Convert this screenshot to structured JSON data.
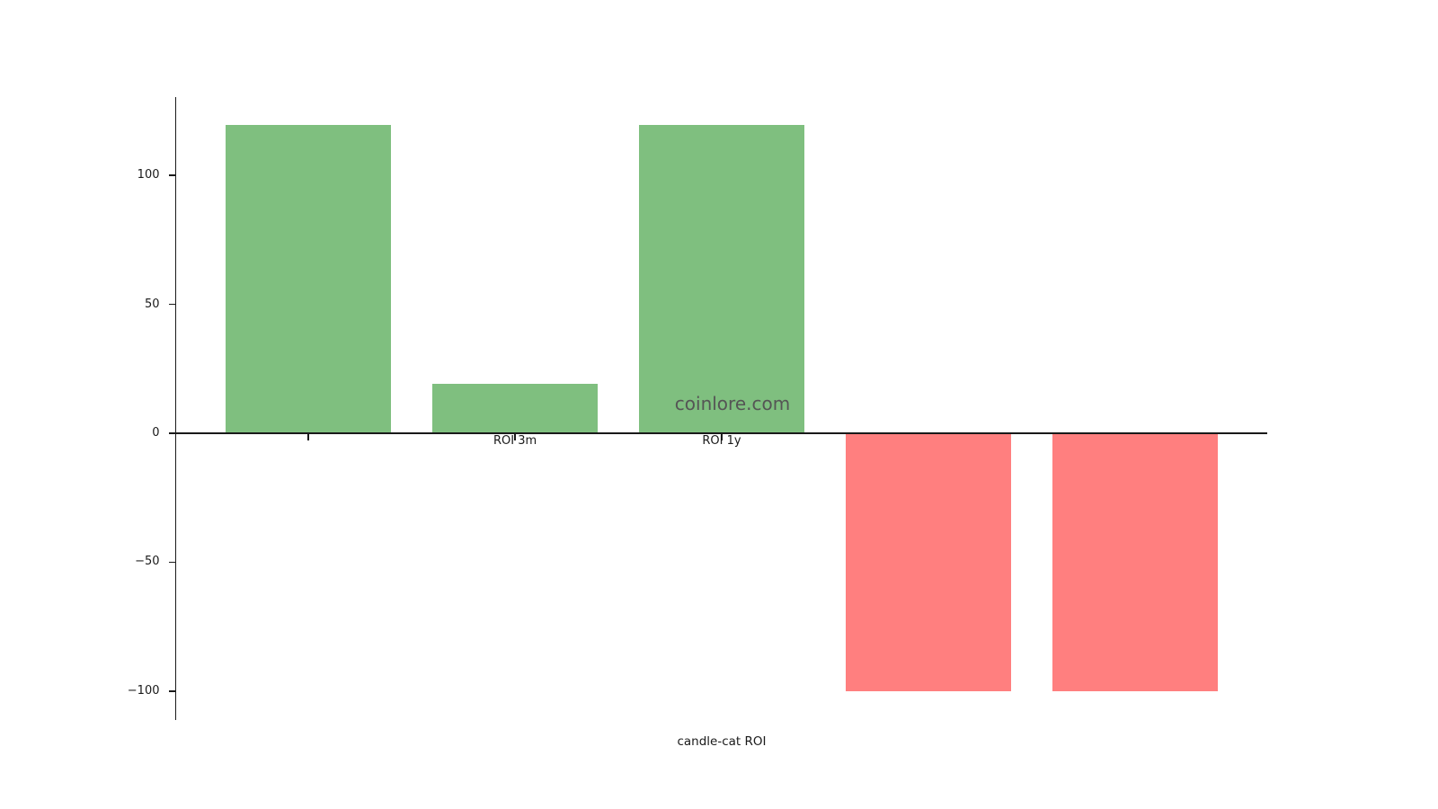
{
  "chart_data": {
    "type": "bar",
    "title": "candle-cat ROI",
    "watermark": "coinlore.com",
    "categories": [
      "",
      "ROI 3m",
      "ROI 1y",
      "",
      ""
    ],
    "values": [
      119.5,
      19,
      119.5,
      -100,
      -100
    ],
    "bar_colors": [
      "#7FBF7F",
      "#7FBF7F",
      "#7FBF7F",
      "#FF7F7F",
      "#FF7F7F"
    ],
    "positive_color": "#7FBF7F",
    "negative_color": "#FF7F7F",
    "y_ticks": [
      {
        "value": 100,
        "label": "100"
      },
      {
        "value": 50,
        "label": "50"
      },
      {
        "value": 0,
        "label": "0"
      },
      {
        "value": -50,
        "label": "−50"
      },
      {
        "value": -100,
        "label": "−100"
      }
    ],
    "x_ticks_visible": [
      0,
      1,
      2
    ],
    "ylim": [
      -111,
      130.5
    ],
    "xlim": [
      -0.64,
      4.64
    ],
    "bar_width_fraction": 0.8,
    "xlabel": "",
    "ylabel": "",
    "grid": false,
    "legend": null,
    "axis_color": "#1a1a1a",
    "text_color": "#1a1a1a",
    "watermark_color": "#555555",
    "background_color": "#ffffff"
  }
}
